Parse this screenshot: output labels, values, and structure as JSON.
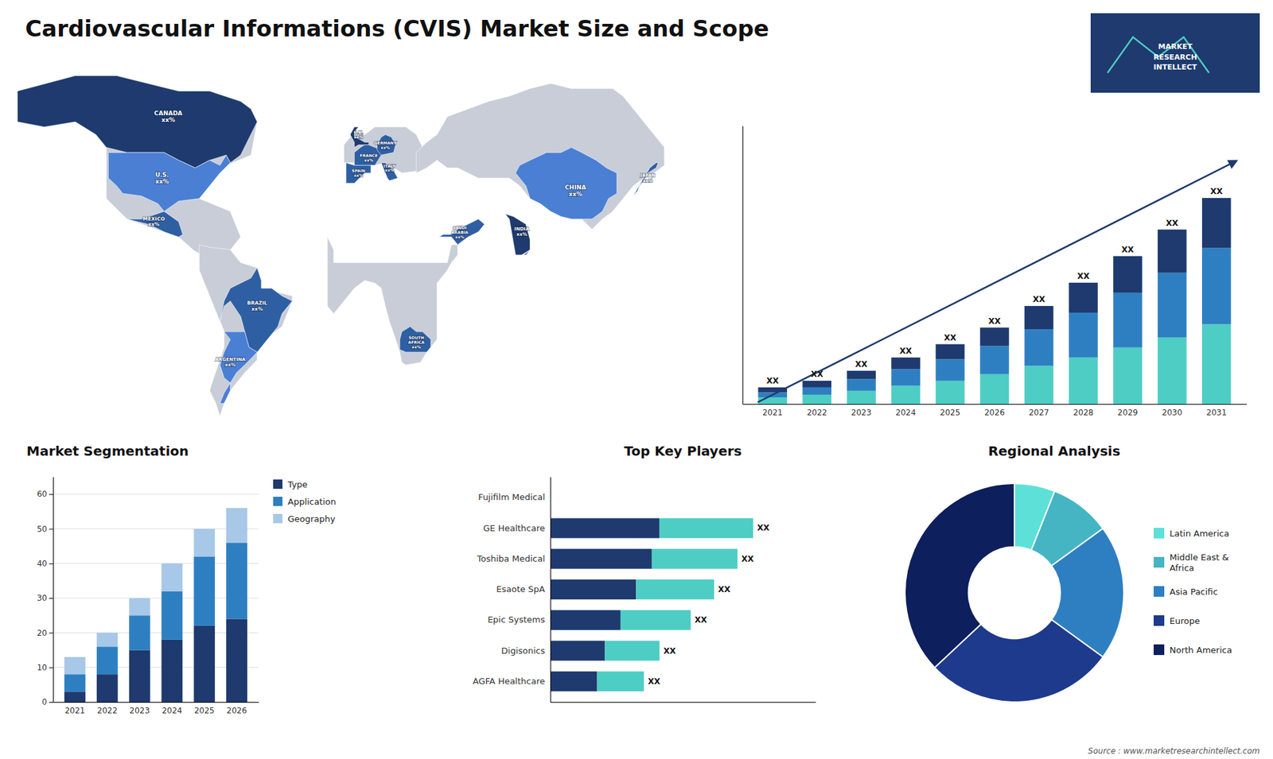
{
  "chart_data": [
    {
      "type": "map",
      "title": "Cardiovascular Informations (CVIS) Market Size and Scope",
      "categories": [
        "CANADA\nxx%",
        "U.S.\nxx%",
        "MEXICO\nxx%",
        "BRAZIL\nxx%",
        "ARGENTINA\nxx%",
        "U.K.\nxx%",
        "FRANCE\nxx%",
        "GERMANY\nxx%",
        "SPAIN\nxx%",
        "ITALY\nxx%",
        "SAUDI\nARABIA\nxx%",
        "CHINA\nxx%",
        "INDIA\nxx%",
        "JAPAN\nxx%",
        "SOUTH\nAFRICA\nxx%"
      ],
      "colors": [
        "#1e3a6e",
        "#4a7fd4",
        "#2e5fa3",
        "#2e5fa3",
        "#4a7fd4",
        "#1e3a6e",
        "#2e5fa3",
        "#2e5fa3",
        "#2e5fa3",
        "#2e5fa3",
        "#2e5fa3",
        "#4a7fd4",
        "#1e3a6e",
        "#2e5fa3",
        "#2e5fa3"
      ],
      "color": "#c8cdd8",
      "annotations": [
        "MARKET",
        "RESEARCH",
        "INTELLECT",
        "Source : www.marketresearchintellect.com"
      ]
    },
    {
      "type": "bar",
      "stacked": true,
      "categories": [
        "2021",
        "2022",
        "2023",
        "2024",
        "2025",
        "2026",
        "2027",
        "2028",
        "2029",
        "2030",
        "2031"
      ],
      "series": [
        {
          "color": "#4ecdc4",
          "values": [
            2.0,
            2.8,
            4.0,
            5.5,
            7.0,
            9.0,
            11.5,
            14.0,
            17.0,
            20.0,
            24.0
          ]
        },
        {
          "color": "#2e7fc1",
          "values": [
            1.5,
            2.2,
            3.5,
            5.0,
            6.5,
            8.5,
            11.0,
            13.5,
            16.5,
            19.5,
            23.0
          ]
        },
        {
          "color": "#1e3a6e",
          "values": [
            1.5,
            2.0,
            2.5,
            3.5,
            4.5,
            5.5,
            7.0,
            9.0,
            11.0,
            13.0,
            15.0
          ]
        }
      ],
      "ylim": [
        0,
        83.7
      ],
      "tick_labels": "x",
      "annotations": [
        "XX",
        "XX",
        "XX",
        "XX",
        "XX",
        "XX",
        "XX",
        "XX",
        "XX",
        "XX",
        "XX"
      ]
    },
    {
      "type": "bar",
      "stacked": true,
      "title": "Market Segmentation",
      "categories": [
        "2021",
        "2022",
        "2023",
        "2024",
        "2025",
        "2026"
      ],
      "series": [
        {
          "name": "Type",
          "color": "#1e3a6e",
          "values": [
            3,
            8,
            15,
            18,
            22,
            24
          ]
        },
        {
          "name": "Application",
          "color": "#2e7fc1",
          "values": [
            5,
            8,
            10,
            14,
            20,
            22
          ]
        },
        {
          "name": "Geography",
          "color": "#a8c8e8",
          "values": [
            5,
            4,
            5,
            8,
            8,
            10
          ]
        }
      ],
      "ylim": [
        0,
        65
      ],
      "yticks": [
        0,
        10,
        20,
        30,
        40,
        50,
        60
      ],
      "grid": true,
      "legend": "right"
    },
    {
      "type": "bar",
      "orientation": "horizontal",
      "stacked": true,
      "title": "Top Key Players",
      "categories": [
        "Fujifilm Medical",
        "GE Healthcare",
        "Toshiba Medical",
        "Esaote SpA",
        "Epic Systems",
        "Digisonics",
        "AGFA Healthcare"
      ],
      "series": [
        {
          "color": "#1e3a6e",
          "values": [
            0,
            7,
            6.5,
            5.5,
            4.5,
            3.5,
            3.0
          ]
        },
        {
          "color": "#4ecdc4",
          "values": [
            0,
            6,
            5.5,
            5.0,
            4.5,
            3.5,
            3.0
          ]
        }
      ],
      "xlim": [
        0,
        17
      ],
      "tick_labels": "y",
      "annotations": [
        null,
        "XX",
        "XX",
        "XX",
        "XX",
        "XX",
        "XX"
      ]
    },
    {
      "type": "pie",
      "title": "Regional Analysis",
      "categories": [
        "Latin America",
        "Middle East &\nAfrica",
        "Asia Pacific",
        "Europe",
        "North America"
      ],
      "values": [
        6,
        9,
        20,
        28,
        37
      ],
      "colors": [
        "#5de0d8",
        "#45b5c4",
        "#2e7fc1",
        "#1e3a8c",
        "#0d1f5c"
      ],
      "legend": "right"
    }
  ]
}
